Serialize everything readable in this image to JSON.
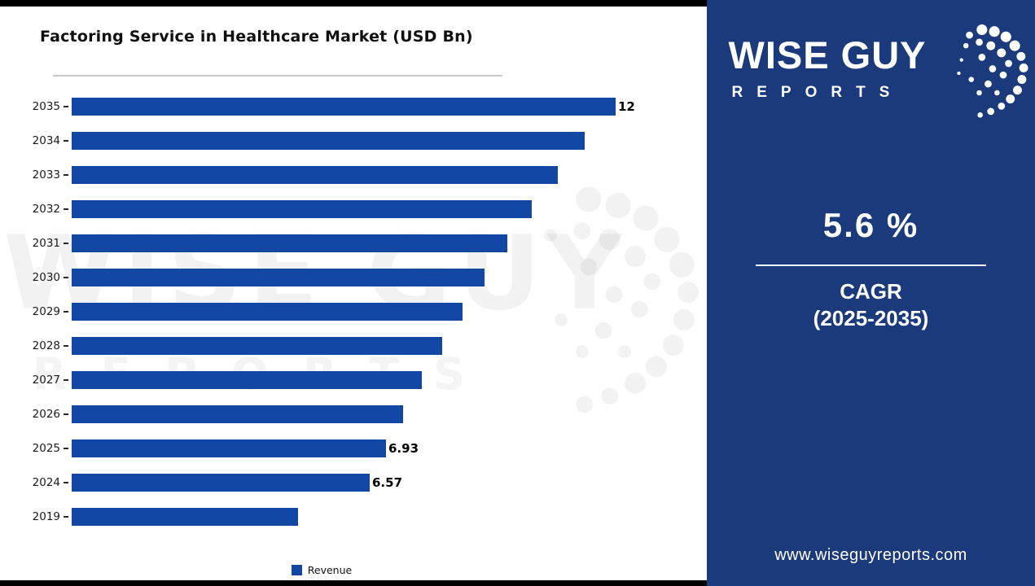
{
  "chart_data": {
    "type": "bar",
    "orientation": "horizontal",
    "title": "Factoring Service in Healthcare Market (USD Bn)",
    "categories": [
      "2035",
      "2034",
      "2033",
      "2032",
      "2031",
      "2030",
      "2029",
      "2028",
      "2027",
      "2026",
      "2025",
      "2024",
      "2019"
    ],
    "values": [
      12,
      11.33,
      10.73,
      10.16,
      9.62,
      9.11,
      8.62,
      8.17,
      7.73,
      7.32,
      6.93,
      6.57,
      5.0
    ],
    "data_labels": {
      "2035": "12",
      "2025": "6.93",
      "2024": "6.57"
    },
    "legend": [
      "Revenue"
    ],
    "xlim": [
      0,
      12.4
    ],
    "bar_color": "#1347a4",
    "grid": false,
    "legend_position": "bottom-center"
  },
  "panel": {
    "brand_line1": "WISE GUY",
    "brand_line2": "REPORTS",
    "cagr_value": "5.6 %",
    "cagr_label": "CAGR",
    "cagr_range": "(2025-2035)",
    "website": "www.wiseguyreports.com",
    "bg_color": "#1a3a7c"
  },
  "watermark": {
    "line1": "WISE GUY",
    "line2": "REPORTS"
  }
}
